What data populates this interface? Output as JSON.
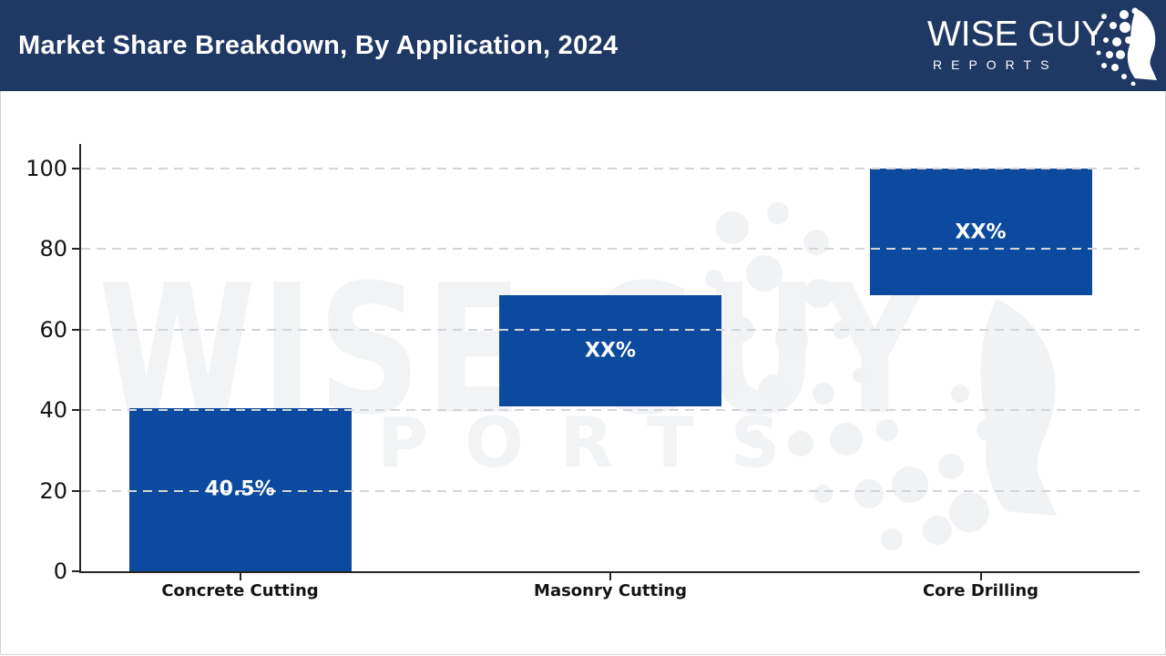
{
  "header": {
    "title": "Market Share Breakdown, By Application, 2024",
    "bg_color": "#1f3864",
    "logo": {
      "line1": "WISE GUY",
      "line2": "REPORTS"
    }
  },
  "watermark": {
    "line1": "WISE GUY",
    "line2": "REPORTS"
  },
  "chart_data": {
    "type": "bar",
    "variant": "floating_stacked_segments",
    "title": "Market Share Breakdown, By Application, 2024",
    "unit": "%",
    "categories": [
      "Concrete Cutting",
      "Masonry Cutting",
      "Core Drilling"
    ],
    "segments": [
      {
        "category": "Concrete Cutting",
        "start": 0,
        "end": 40.5,
        "label": "40.5%"
      },
      {
        "category": "Masonry Cutting",
        "start": 41,
        "end": 68.5,
        "label": "XX%"
      },
      {
        "category": "Core Drilling",
        "start": 68.5,
        "end": 100,
        "label": "XX%"
      }
    ],
    "yticks": [
      0,
      20,
      40,
      60,
      80,
      100
    ],
    "ylim": [
      0,
      105
    ],
    "grid": {
      "horizontal": true,
      "style": "dashed"
    },
    "legend": null,
    "bar_color": "#0b4a9e",
    "bar_label_color": "#ffffff",
    "axis_color": "#262626"
  }
}
